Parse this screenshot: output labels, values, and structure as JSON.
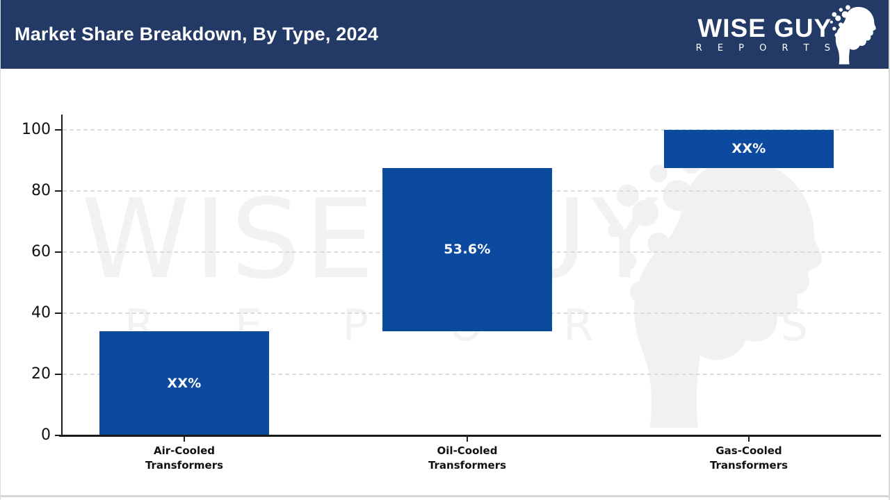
{
  "header": {
    "title": "Market Share Breakdown, By Type, 2024",
    "bg_color": "#233a66",
    "logo": {
      "wordmark": "WISE GUY",
      "sub": "R E P O R T S"
    }
  },
  "watermark": {
    "wordmark": "WISE GUY",
    "sub": "R E P O R T S"
  },
  "chart_data": {
    "type": "bar",
    "subtype": "waterfall",
    "title": "Market Share Breakdown, By Type, 2024",
    "categories": [
      [
        "Air-Cooled",
        "Transformers"
      ],
      [
        "Oil-Cooled",
        "Transformers"
      ],
      [
        "Gas-Cooled",
        "Transformers"
      ]
    ],
    "segments": [
      {
        "label": "XX%",
        "start": 0,
        "end": 34.0,
        "implied_value": 34.0
      },
      {
        "label": "53.6%",
        "start": 34.0,
        "end": 87.6,
        "implied_value": 53.6
      },
      {
        "label": "XX%",
        "start": 87.6,
        "end": 100.0,
        "implied_value": 12.4
      }
    ],
    "ylim": [
      0,
      100
    ],
    "yticks": [
      0,
      20,
      40,
      60,
      80,
      100
    ],
    "grid": "horizontal-dashed",
    "legend": "none",
    "bar_color": "#0b4a9f",
    "bar_label_color": "#ffffff",
    "axis_color": "#1a1a1a"
  }
}
